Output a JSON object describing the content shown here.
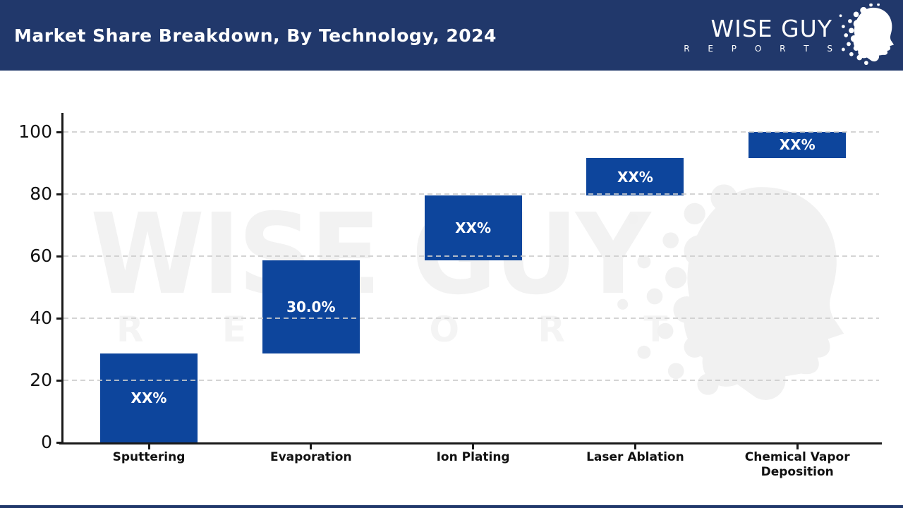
{
  "header": {
    "title": "Market Share Breakdown, By Technology, 2024",
    "logo": {
      "line1": "WISE GUY",
      "line2": "R E P O R T S"
    }
  },
  "watermark": {
    "line1": "WISE GUY",
    "line2": "R E P O R T S"
  },
  "chart_data": {
    "type": "bar",
    "subtype": "waterfall",
    "title": "Market Share Breakdown, By Technology, 2024",
    "categories": [
      "Sputtering",
      "Evaporation",
      "Ion Plating",
      "Laser Ablation",
      "Chemical Vapor\nDeposition"
    ],
    "segments": [
      {
        "category": "Sputtering",
        "start": 0,
        "end": 28.6,
        "label": "XX%"
      },
      {
        "category": "Evaporation",
        "start": 28.6,
        "end": 58.6,
        "label": "30.0%"
      },
      {
        "category": "Ion Plating",
        "start": 58.6,
        "end": 79.5,
        "label": "XX%"
      },
      {
        "category": "Laser Ablation",
        "start": 79.5,
        "end": 91.6,
        "label": "XX%"
      },
      {
        "category": "Chemical Vapor\nDeposition",
        "start": 91.6,
        "end": 100,
        "label": "XX%"
      }
    ],
    "yticks": [
      0,
      20,
      40,
      60,
      80,
      100
    ],
    "ylim": [
      0,
      106
    ],
    "grid": "dashed-horizontal",
    "legend": "none",
    "bar_color": "#0d459c",
    "bar_label_color": "#ffffff"
  },
  "colors": {
    "header_bg": "#21386b",
    "bar": "#0d459c",
    "grid": "#d8d8d8",
    "axis": "#1a1a1a",
    "watermark": "#f2f2f2",
    "title_text": "#ffffff"
  }
}
